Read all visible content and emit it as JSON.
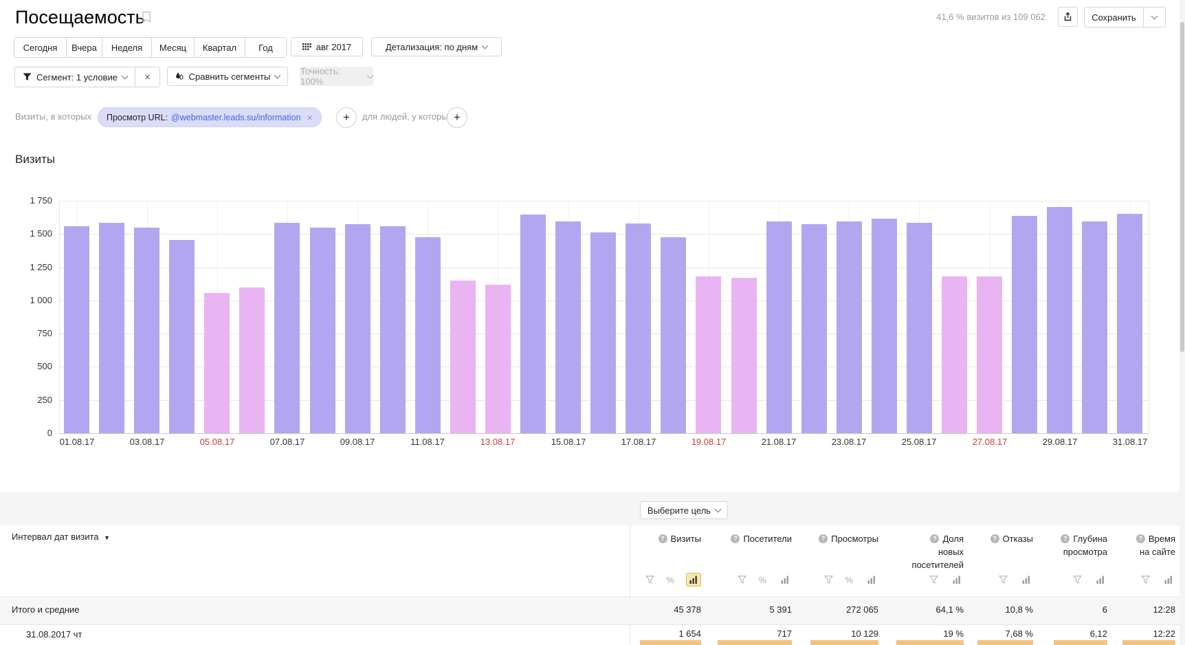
{
  "header": {
    "title": "Посещаемость",
    "sample_note": "41,6 % визитов из 109 062",
    "save_label": "Сохранить"
  },
  "toolbar": {
    "period_tabs": [
      "Сегодня",
      "Вчера",
      "Неделя",
      "Месяц",
      "Квартал",
      "Год"
    ],
    "calendar_label": "авг 2017",
    "detail_label": "Детализация: по дням"
  },
  "segment_bar": {
    "segment_label": "Сегмент: 1 условие",
    "compare_label": "Сравнить сегменты",
    "accuracy_label": "Точность: 100%"
  },
  "filter_bar": {
    "prefix": "Визиты, в которых",
    "chip_label": "Просмотр URL:",
    "chip_value": "@webmaster.leads.su/information",
    "between": "для людей, у которых"
  },
  "chart_data": {
    "type": "bar",
    "title": "Визиты",
    "x": [
      "01.08.17",
      "02.08.17",
      "03.08.17",
      "04.08.17",
      "05.08.17",
      "06.08.17",
      "07.08.17",
      "08.08.17",
      "09.08.17",
      "10.08.17",
      "11.08.17",
      "12.08.17",
      "13.08.17",
      "14.08.17",
      "15.08.17",
      "16.08.17",
      "17.08.17",
      "18.08.17",
      "19.08.17",
      "20.08.17",
      "21.08.17",
      "22.08.17",
      "23.08.17",
      "24.08.17",
      "25.08.17",
      "26.08.17",
      "27.08.17",
      "28.08.17",
      "29.08.17",
      "30.08.17",
      "31.08.17"
    ],
    "values": [
      1558,
      1582,
      1550,
      1455,
      1058,
      1098,
      1582,
      1550,
      1572,
      1560,
      1478,
      1150,
      1118,
      1645,
      1595,
      1510,
      1580,
      1478,
      1178,
      1172,
      1595,
      1575,
      1595,
      1615,
      1585,
      1178,
      1178,
      1636,
      1703,
      1595,
      1654
    ],
    "weekend_indices": [
      4,
      5,
      11,
      12,
      18,
      19,
      25,
      26
    ],
    "red_label_indices": [
      4,
      12,
      18,
      26
    ],
    "ylim": [
      0,
      1750
    ],
    "yticks": [
      "0",
      "250",
      "500",
      "750",
      "1 000",
      "1 250",
      "1 500",
      "1 750"
    ],
    "legend": "none",
    "grid": "on",
    "colors": {
      "weekday_bar": "#b3a6f0",
      "weekend_bar": "#e9b4f2",
      "red_label": "#c83c3c"
    }
  },
  "goal_button": {
    "label": "Выберите цель"
  },
  "table": {
    "first_column_header": "Интервал дат визита",
    "columns": [
      {
        "label": "Визиты",
        "lines": [
          "Визиты"
        ],
        "icons": [
          "filter",
          "percent",
          "sort"
        ],
        "sort_active": true
      },
      {
        "label": "Посетители",
        "lines": [
          "Посетители"
        ],
        "icons": [
          "filter",
          "percent",
          "sort"
        ],
        "sort_active": false
      },
      {
        "label": "Просмотры",
        "lines": [
          "Просмотры"
        ],
        "icons": [
          "filter",
          "percent",
          "sort"
        ],
        "sort_active": false
      },
      {
        "label": "Доля новых посетителей",
        "lines": [
          "Доля",
          "новых",
          "посетителей"
        ],
        "icons": [
          "filter",
          "sort"
        ],
        "sort_active": false
      },
      {
        "label": "Отказы",
        "lines": [
          "Отказы"
        ],
        "icons": [
          "filter",
          "sort"
        ],
        "sort_active": false
      },
      {
        "label": "Глубина просмотра",
        "lines": [
          "Глубина",
          "просмотра"
        ],
        "icons": [
          "filter",
          "sort"
        ],
        "sort_active": false
      },
      {
        "label": "Время на сайте",
        "lines": [
          "Время",
          "на сайте"
        ],
        "icons": [
          "filter",
          "sort"
        ],
        "sort_active": false
      }
    ],
    "totals_row": {
      "label": "Итого и средние",
      "values": [
        "45 378",
        "5 391",
        "272 065",
        "64,1 %",
        "10,8 %",
        "6",
        "12:28"
      ]
    },
    "rows": [
      {
        "label": "31.08.2017 чт",
        "values": [
          "1 654",
          "717",
          "10 129",
          "19 %",
          "7,68 %",
          "6,12",
          "12:22"
        ]
      }
    ]
  }
}
